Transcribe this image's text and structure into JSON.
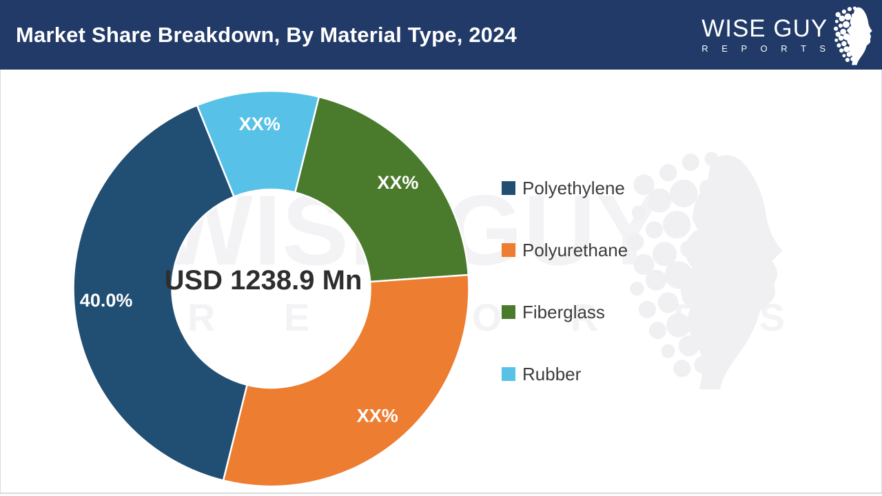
{
  "header": {
    "title": "Market Share Breakdown, By Material Type, 2024",
    "logo": {
      "name": "WISE GUY",
      "sub": "R E P O R T S"
    }
  },
  "chart_data": {
    "type": "donut",
    "title": "Market Share Breakdown, By Material Type, 2024",
    "center_label": "USD 1238.9 Mn",
    "unit": "percent",
    "start_angle_deg": 194,
    "draw_order": [
      "Polyethylene",
      "Rubber",
      "Fiberglass",
      "Polyurethane"
    ],
    "segments": [
      {
        "name": "Polyethylene",
        "value": 40.0,
        "label": "40.0%",
        "color": "#214e73"
      },
      {
        "name": "Polyurethane",
        "value": 30.0,
        "label": "XX%",
        "color": "#ed7d31"
      },
      {
        "name": "Fiberglass",
        "value": 20.0,
        "label": "XX%",
        "color": "#4a7a2c"
      },
      {
        "name": "Rubber",
        "value": 10.0,
        "label": "XX%",
        "color": "#58c1e8"
      }
    ],
    "legend_position": "right"
  },
  "watermark": {
    "line1": "WISE GUY",
    "line2": "R E P O R T S"
  },
  "colors": {
    "header_bg": "#223a68",
    "page_bg": "#ffffff",
    "border": "#d9d9d9",
    "legend_text": "#3c3c3c",
    "center_text": "#2e2e2e",
    "segment_label_text": "#ffffff",
    "watermark": "#f3f3f5"
  }
}
